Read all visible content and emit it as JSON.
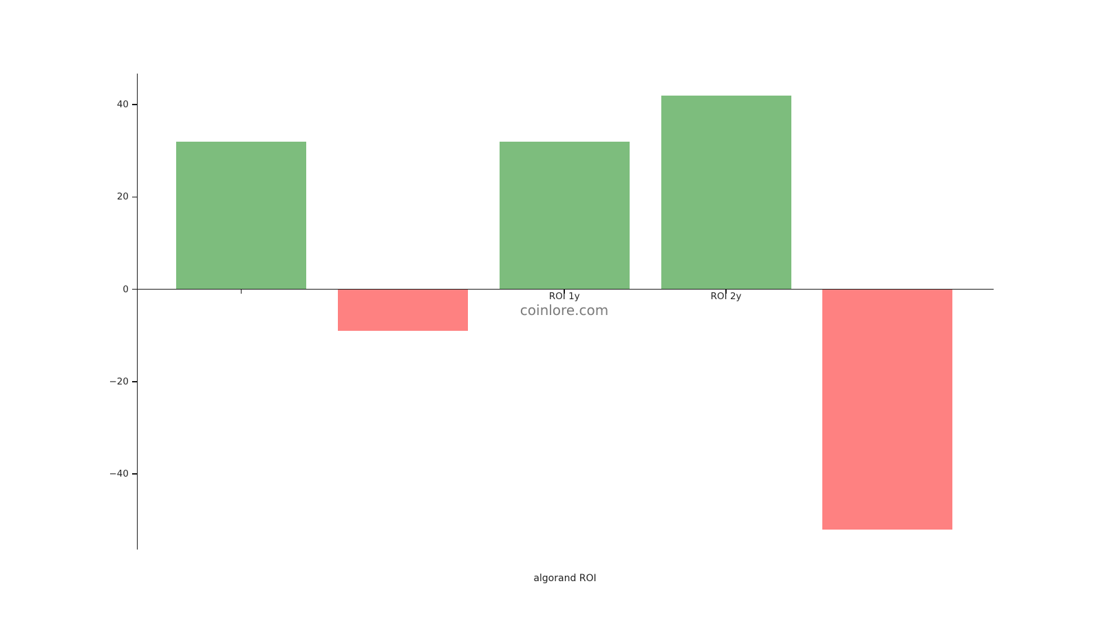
{
  "page": {
    "background_color": "#ffffff"
  },
  "watermark": {
    "text": "coinlore.com",
    "color": "#7a7a7a"
  },
  "chart_data": {
    "type": "bar",
    "title": "",
    "xlabel": "algorand ROI",
    "ylabel": "",
    "categories": [
      "",
      "",
      "ROI 1y",
      "ROI 2y",
      ""
    ],
    "values": [
      32,
      -9,
      32,
      42,
      -52
    ],
    "bar_colors": [
      "#7dbd7d",
      "#fe8181",
      "#7dbd7d",
      "#7dbd7d",
      "#fe8181"
    ],
    "positive_color": "#7dbd7d",
    "negative_color": "#fe8181",
    "axis_color": "#1a1a1a",
    "tick_label_color": "#262626",
    "y_ticks": {
      "values": [
        40,
        20,
        0,
        -20,
        -40
      ],
      "labels": [
        "40",
        "20",
        "0",
        "−20",
        "−40"
      ]
    },
    "ylim": [
      -56,
      47
    ],
    "grid": false,
    "legend_position": "none"
  }
}
